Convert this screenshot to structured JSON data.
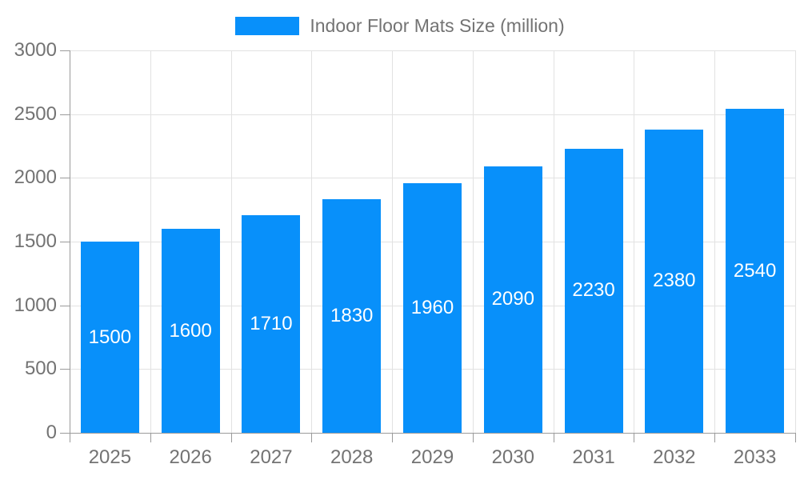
{
  "legend": {
    "label": "Indoor Floor Mats Size (million)"
  },
  "chart_data": {
    "type": "bar",
    "title": "Indoor Floor Mats Size (million)",
    "series_name": "Indoor Floor Mats Size (million)",
    "categories": [
      "2025",
      "2026",
      "2027",
      "2028",
      "2029",
      "2030",
      "2031",
      "2032",
      "2033"
    ],
    "values": [
      1500,
      1600,
      1710,
      1830,
      1960,
      2090,
      2230,
      2380,
      2540
    ],
    "xlabel": "",
    "ylabel": "",
    "ylim": [
      0,
      3000
    ],
    "yticks": [
      0,
      500,
      1000,
      1500,
      2000,
      2500,
      3000
    ],
    "grid": true,
    "legend_position": "top",
    "value_label_position": "inside-center"
  },
  "colors": {
    "bar": "#0890FA",
    "grid": "#e2e2e2",
    "axis": "#9b9b9b",
    "tick_label": "#737373",
    "legend_text": "#737373",
    "value_label": "#ffffff",
    "background": "#ffffff"
  }
}
